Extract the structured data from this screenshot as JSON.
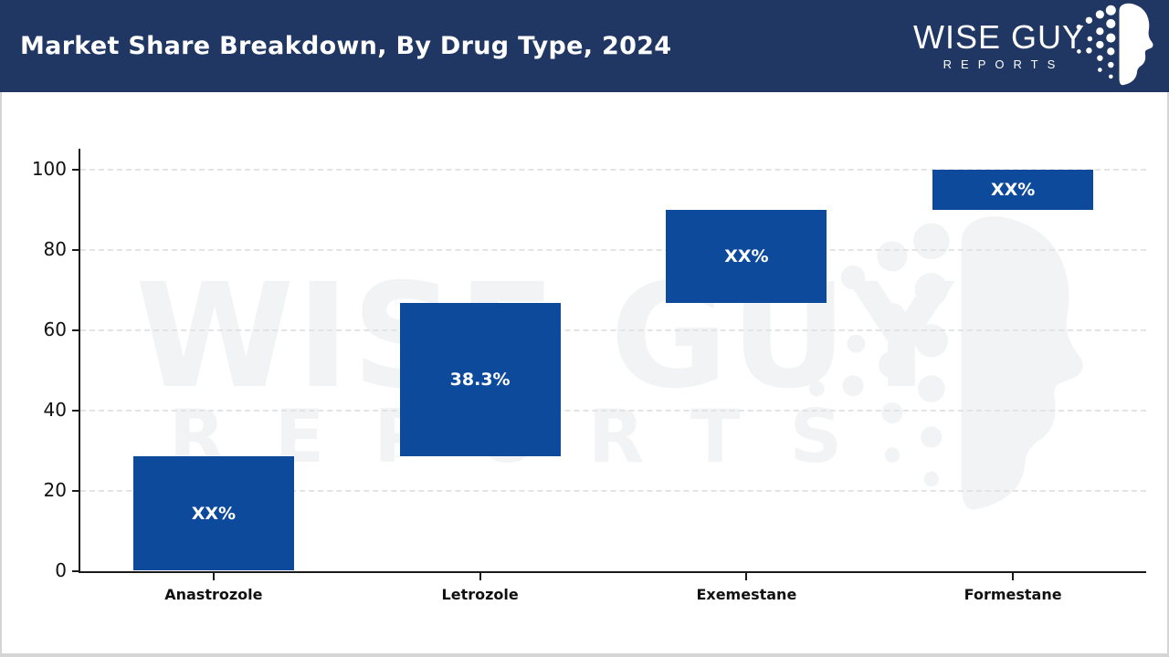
{
  "header": {
    "title": "Market Share Breakdown, By Drug Type, 2024",
    "bg_color": "#203764",
    "logo": {
      "line1": "WISE GUY",
      "line2": "REPORTS"
    }
  },
  "watermark": {
    "line1": "WISE GUY",
    "line2": "REPORTS"
  },
  "chart_data": {
    "type": "bar",
    "subtype": "waterfall-floating-bars",
    "title": "Market Share Breakdown, By Drug Type, 2024",
    "categories": [
      "Anastrozole",
      "Letrozole",
      "Exemestane",
      "Formestane"
    ],
    "segments": [
      {
        "category": "Anastrozole",
        "start": 0,
        "end": 28.5,
        "label": "XX%"
      },
      {
        "category": "Letrozole",
        "start": 28.5,
        "end": 66.8,
        "label": "38.3%"
      },
      {
        "category": "Exemestane",
        "start": 66.8,
        "end": 90.0,
        "label": "XX%"
      },
      {
        "category": "Formestane",
        "start": 90.0,
        "end": 100.0,
        "label": "XX%"
      }
    ],
    "yticks": [
      0,
      20,
      40,
      60,
      80,
      100
    ],
    "ylim": [
      0,
      105.2
    ],
    "xlabel": "",
    "ylabel": "",
    "grid": "horizontal-dashed",
    "legend": "none",
    "bar_color": "#0d4a9c",
    "bar_label_color": "#ffffff",
    "axis_color": "#1a1a1a",
    "grid_color": "#e4e4e4"
  }
}
